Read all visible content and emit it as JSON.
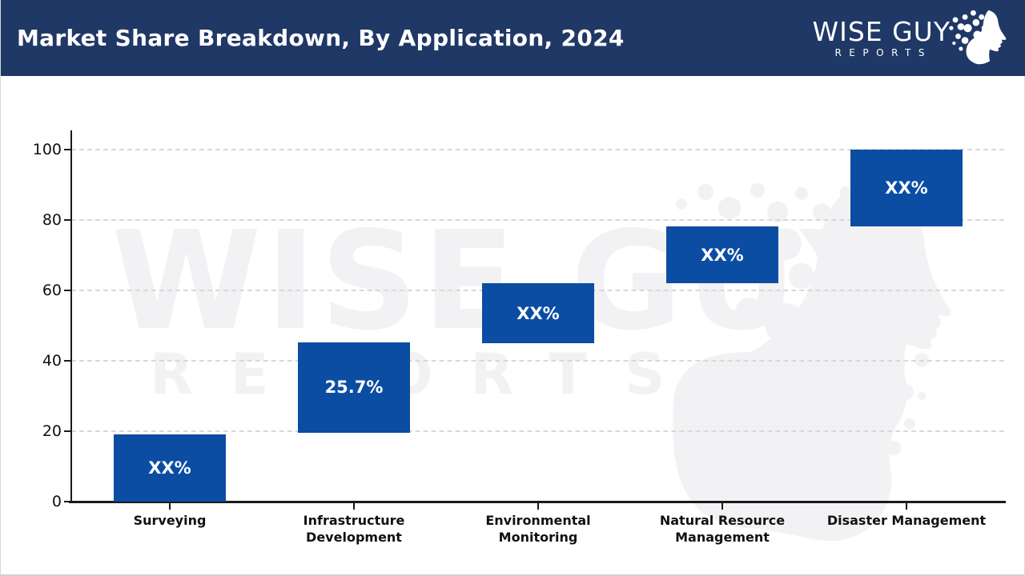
{
  "header": {
    "title": "Market Share Breakdown, By Application, 2024",
    "logo": {
      "wordmark": "WISE GUY",
      "subtext": "REPORTS"
    }
  },
  "watermark": {
    "wordmark": "WISE GUY",
    "subtext": "REPORTS"
  },
  "chart_data": {
    "type": "bar",
    "subtype": "waterfall",
    "title": "Market Share Breakdown, By Application, 2024",
    "categories": [
      "Surveying",
      "Infrastructure Development",
      "Environmental Monitoring",
      "Natural Resource Management",
      "Disaster Management"
    ],
    "series": [
      {
        "name": "Market Share (%)",
        "segments": [
          {
            "category": "Surveying",
            "start": 0,
            "end": 19.2,
            "label": "XX%"
          },
          {
            "category": "Infrastructure Development",
            "start": 19.6,
            "end": 45.3,
            "label": "25.7%"
          },
          {
            "category": "Environmental Monitoring",
            "start": 45.0,
            "end": 62.0,
            "label": "XX%"
          },
          {
            "category": "Natural Resource Management",
            "start": 62.0,
            "end": 78.2,
            "label": "XX%"
          },
          {
            "category": "Disaster Management",
            "start": 78.2,
            "end": 100.0,
            "label": "XX%"
          }
        ]
      }
    ],
    "ylim": [
      0,
      100
    ],
    "yticks": [
      0,
      20,
      40,
      60,
      80,
      100
    ],
    "xlabel": "",
    "ylabel": "",
    "grid": "horizontal dashed",
    "legend": "none",
    "bar_color": "#0b4da2"
  },
  "colors": {
    "header_bg": "#1f3866",
    "bar": "#0b4da2",
    "gridline": "#d9d9d9",
    "axis": "#1a1a1a",
    "watermark": "#f2f2f4",
    "title_text": "#ffffff"
  }
}
